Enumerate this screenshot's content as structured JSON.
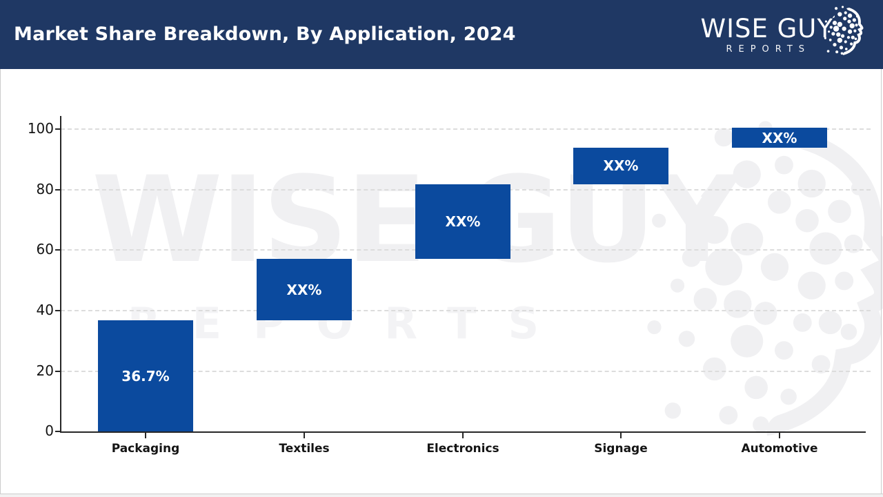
{
  "header": {
    "title": "Market Share Breakdown, By Application, 2024",
    "bg_color": "#1f3864",
    "text_color": "#ffffff",
    "logo": {
      "line1": "WISE GUY",
      "line2": "REPORTS"
    }
  },
  "watermark": {
    "line1": "WISE GUY",
    "line2": "REPORTS"
  },
  "chart_data": {
    "type": "bar",
    "subtype": "waterfall",
    "title": "Market Share Breakdown, By Application, 2024",
    "categories": [
      "Packaging",
      "Textiles",
      "Electronics",
      "Signage",
      "Automotive"
    ],
    "segments": [
      {
        "category": "Packaging",
        "start": 0,
        "end": 36.7,
        "label": "36.7%"
      },
      {
        "category": "Textiles",
        "start": 36.7,
        "end": 57.1,
        "label": "XX%"
      },
      {
        "category": "Electronics",
        "start": 57.2,
        "end": 81.8,
        "label": "XX%"
      },
      {
        "category": "Signage",
        "start": 81.8,
        "end": 93.8,
        "label": "XX%"
      },
      {
        "category": "Automotive",
        "start": 93.8,
        "end": 100.4,
        "label": "XX%"
      }
    ],
    "xlabel": "",
    "ylabel": "",
    "ylim": [
      0,
      105
    ],
    "yticks": [
      0,
      20,
      40,
      60,
      80,
      100
    ],
    "grid": "horizontal-dashed",
    "legend": "none",
    "bar_color": "#0b4a9e",
    "bar_label_color": "#ffffff",
    "axis_color": "#262626",
    "gridline_color": "#dcdcdc"
  }
}
